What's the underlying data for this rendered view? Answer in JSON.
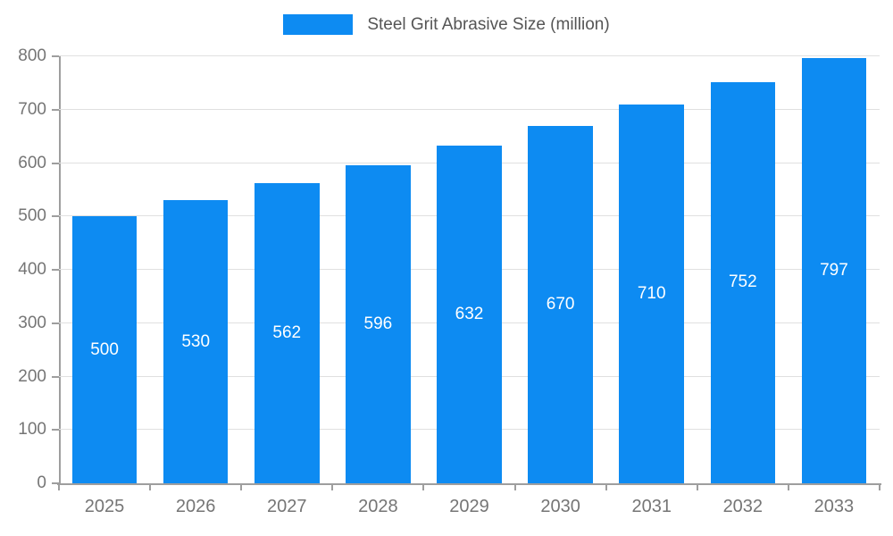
{
  "chart_data": {
    "type": "bar",
    "title": "Steel Grit Abrasive Size (million)",
    "categories": [
      "2025",
      "2026",
      "2027",
      "2028",
      "2029",
      "2030",
      "2031",
      "2032",
      "2033"
    ],
    "values": [
      500,
      530,
      562,
      596,
      632,
      670,
      710,
      752,
      797
    ],
    "xlabel": "",
    "ylabel": "",
    "ylim": [
      0,
      800
    ],
    "ytick_step": 100,
    "grid": true,
    "legend_position": "top",
    "colors": {
      "bar": "#0d8bf2",
      "bar_label": "#ffffff",
      "grid": "#e0e0e0",
      "axis": "#9e9e9e",
      "tick_label": "#757575",
      "legend_text": "#555555"
    }
  }
}
